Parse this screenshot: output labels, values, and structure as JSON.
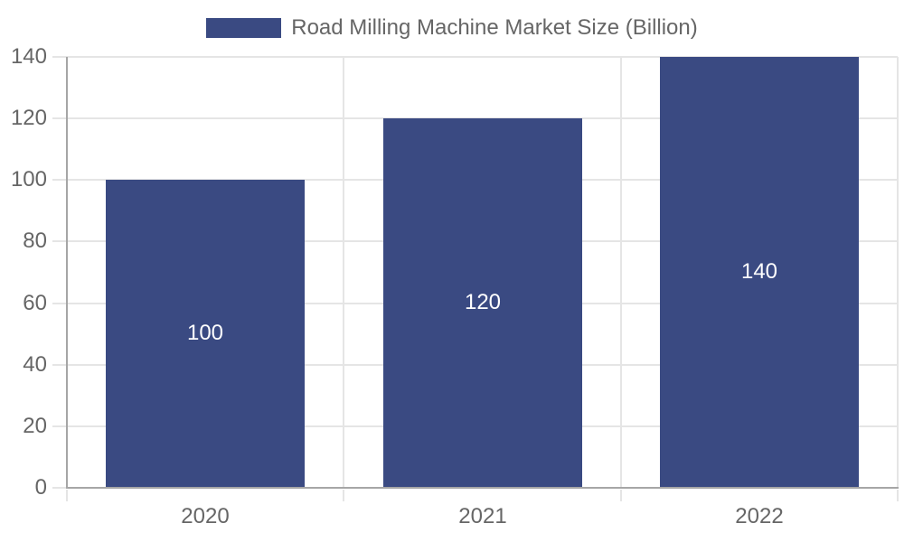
{
  "chart_data": {
    "type": "bar",
    "title": "Road Milling Machine Market Size (Billion)",
    "categories": [
      "2020",
      "2021",
      "2022"
    ],
    "values": [
      100,
      120,
      140
    ],
    "value_labels": [
      "100",
      "120",
      "140"
    ],
    "xlabel": "",
    "ylabel": "",
    "ylim": [
      0,
      140
    ],
    "ytick_step": 20,
    "ytick_labels": [
      "0",
      "20",
      "40",
      "60",
      "80",
      "100",
      "120",
      "140"
    ],
    "grid": "on",
    "legend": {
      "label": "Road Milling Machine Market Size (Billion)",
      "position": "top-center"
    }
  },
  "colors": {
    "bar": "#3A4A82",
    "grid": "#E5E5E5",
    "axis": "#A6A6A6",
    "tick_text": "#666666",
    "legend_text": "#666666",
    "value_label_text": "#FFFFFF",
    "background": "#FFFFFF"
  }
}
